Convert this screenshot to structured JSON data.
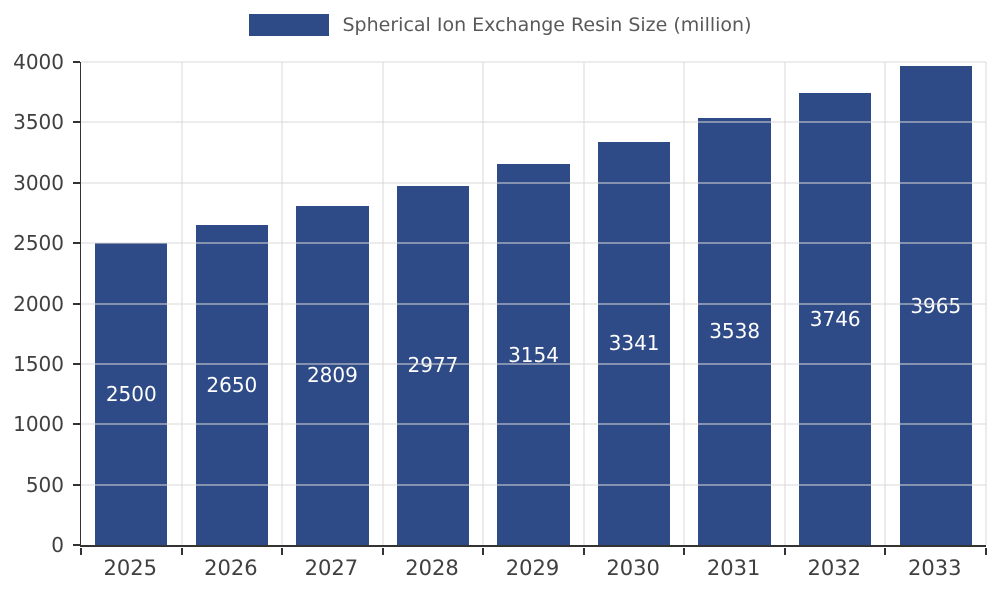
{
  "legend": {
    "label": "Spherical Ion Exchange Resin Size (million)"
  },
  "chart_data": {
    "type": "bar",
    "title": "Spherical Ion Exchange Resin Size (million)",
    "categories": [
      "2025",
      "2026",
      "2027",
      "2028",
      "2029",
      "2030",
      "2031",
      "2032",
      "2033"
    ],
    "values": [
      2500,
      2650,
      2809,
      2977,
      3154,
      3341,
      3538,
      3746,
      3965
    ],
    "xlabel": "",
    "ylabel": "",
    "ylim": [
      0,
      4000
    ],
    "yticks": [
      0,
      500,
      1000,
      1500,
      2000,
      2500,
      3000,
      3500,
      4000
    ],
    "grid": true,
    "legend_position": "top",
    "bar_color": "#2e4a87",
    "value_label_color": "#ffffff",
    "axis_label_color": "#404040",
    "legend_text_color": "#595959",
    "gridline_color": "#d9d9d9"
  }
}
